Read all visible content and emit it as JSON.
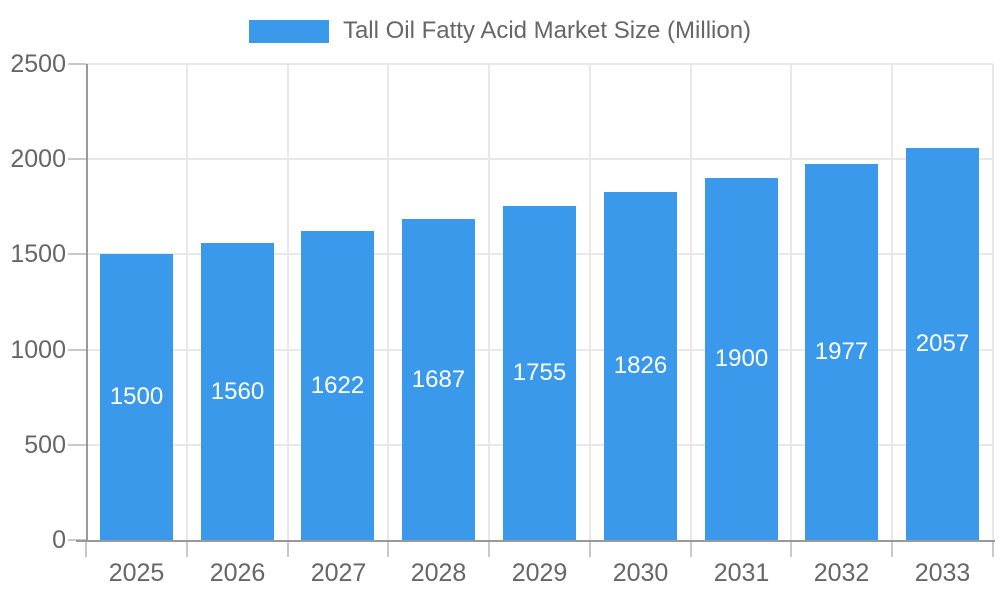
{
  "chart_data": {
    "type": "bar",
    "title": "Tall Oil Fatty Acid Market Size (Million)",
    "categories": [
      "2025",
      "2026",
      "2027",
      "2028",
      "2029",
      "2030",
      "2031",
      "2032",
      "2033"
    ],
    "values": [
      1500,
      1560,
      1622,
      1687,
      1755,
      1826,
      1900,
      1977,
      2057
    ],
    "xlabel": "",
    "ylabel": "",
    "ylim": [
      0,
      2500
    ],
    "ytick_step": 500,
    "ytick_labels": [
      "0",
      "500",
      "1000",
      "1500",
      "2000",
      "2500"
    ],
    "grid": true,
    "legend_position": "top-center",
    "bar_labels_visible": true,
    "colors": {
      "bar": "#3B99EC",
      "bar_label_text": "#FFFFFF",
      "axis_line": "#999999",
      "tick_mark": "#C9C9C9",
      "gridline": "#E8E8E8",
      "label_text": "#666666",
      "background": "#FFFFFF"
    }
  }
}
